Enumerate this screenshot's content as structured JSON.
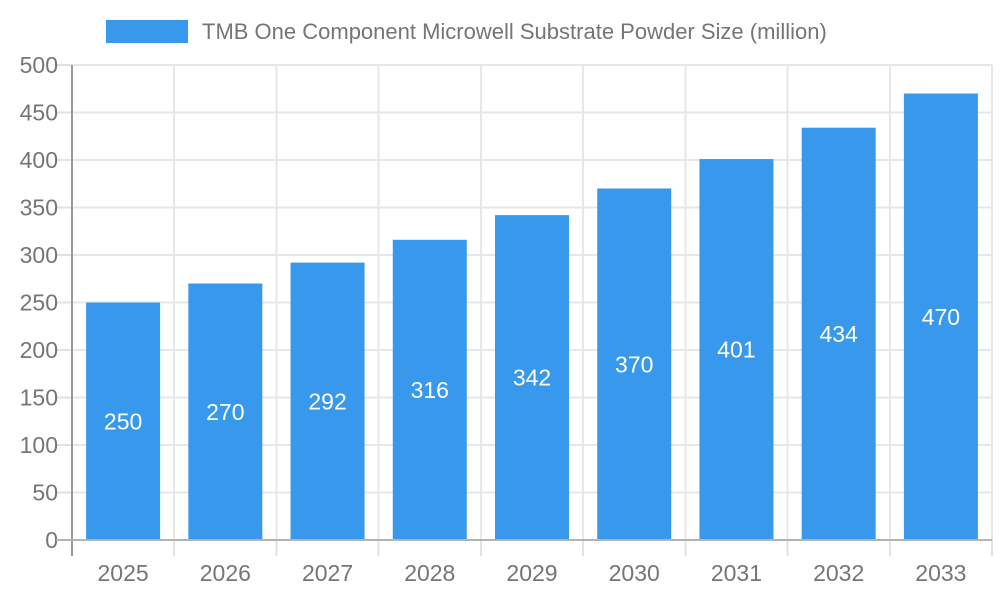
{
  "colors": {
    "bar": "#3899ec",
    "bar_label": "#ffffff",
    "axis_text": "#757575",
    "grid_line": "#e7e7e7",
    "y_axis_line": "#999999",
    "x_axis_line": "#b3b3b3",
    "outer_tick": "#e2e2e2",
    "background": "#ffffff"
  },
  "legend": {
    "label": "TMB One Component Microwell Substrate Powder Size (million)"
  },
  "chart_data": {
    "type": "bar",
    "title": "TMB One Component Microwell Substrate Powder Size (million)",
    "categories": [
      "2025",
      "2026",
      "2027",
      "2028",
      "2029",
      "2030",
      "2031",
      "2032",
      "2033"
    ],
    "values": [
      250,
      270,
      292,
      316,
      342,
      370,
      401,
      434,
      470
    ],
    "series_name": "TMB One Component Microwell Substrate Powder Size (million)",
    "xlabel": "",
    "ylabel": "",
    "ylim": [
      0,
      500
    ],
    "ytick_step": 50,
    "yticks": [
      "0",
      "50",
      "100",
      "150",
      "200",
      "250",
      "300",
      "350",
      "400",
      "450",
      "500"
    ],
    "grid": "both",
    "legend_position": "top",
    "value_labels": "inside-middle"
  }
}
